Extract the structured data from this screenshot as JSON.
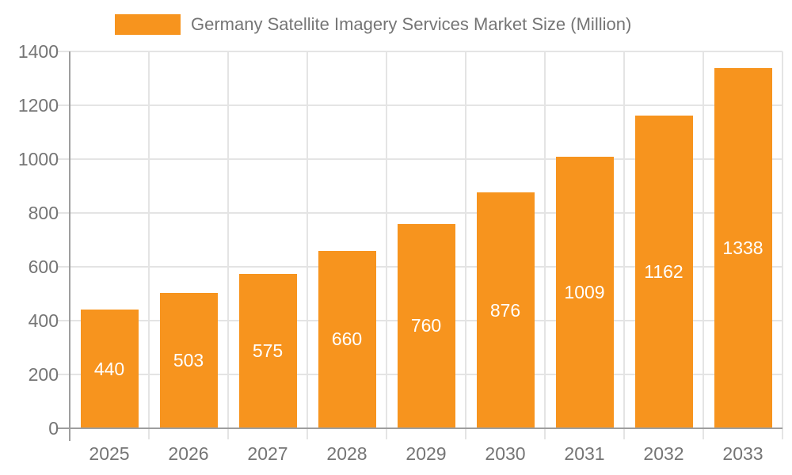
{
  "legend": {
    "label": "Germany Satellite Imagery Services Market Size (Million)"
  },
  "chart_data": {
    "type": "bar",
    "title": "Germany Satellite Imagery Services Market Size (Million)",
    "series_name": "Germany Satellite Imagery Services Market Size (Million)",
    "categories": [
      "2025",
      "2026",
      "2027",
      "2028",
      "2029",
      "2030",
      "2031",
      "2032",
      "2033"
    ],
    "values": [
      440,
      503,
      575,
      660,
      760,
      876,
      1009,
      1162,
      1338
    ],
    "xlabel": "",
    "ylabel": "",
    "ylim": [
      0,
      1400
    ],
    "yticks": [
      0,
      200,
      400,
      600,
      800,
      1000,
      1200,
      1400
    ],
    "grid": true,
    "legend_position": "top",
    "value_labels": "inside-center"
  },
  "colors": {
    "bar": "#F7941E",
    "value_label": "#FFFFFF",
    "grid": "#E4E4E4",
    "axis": "#9E9E9E",
    "text": "#757575",
    "background": "#FFFFFF"
  }
}
